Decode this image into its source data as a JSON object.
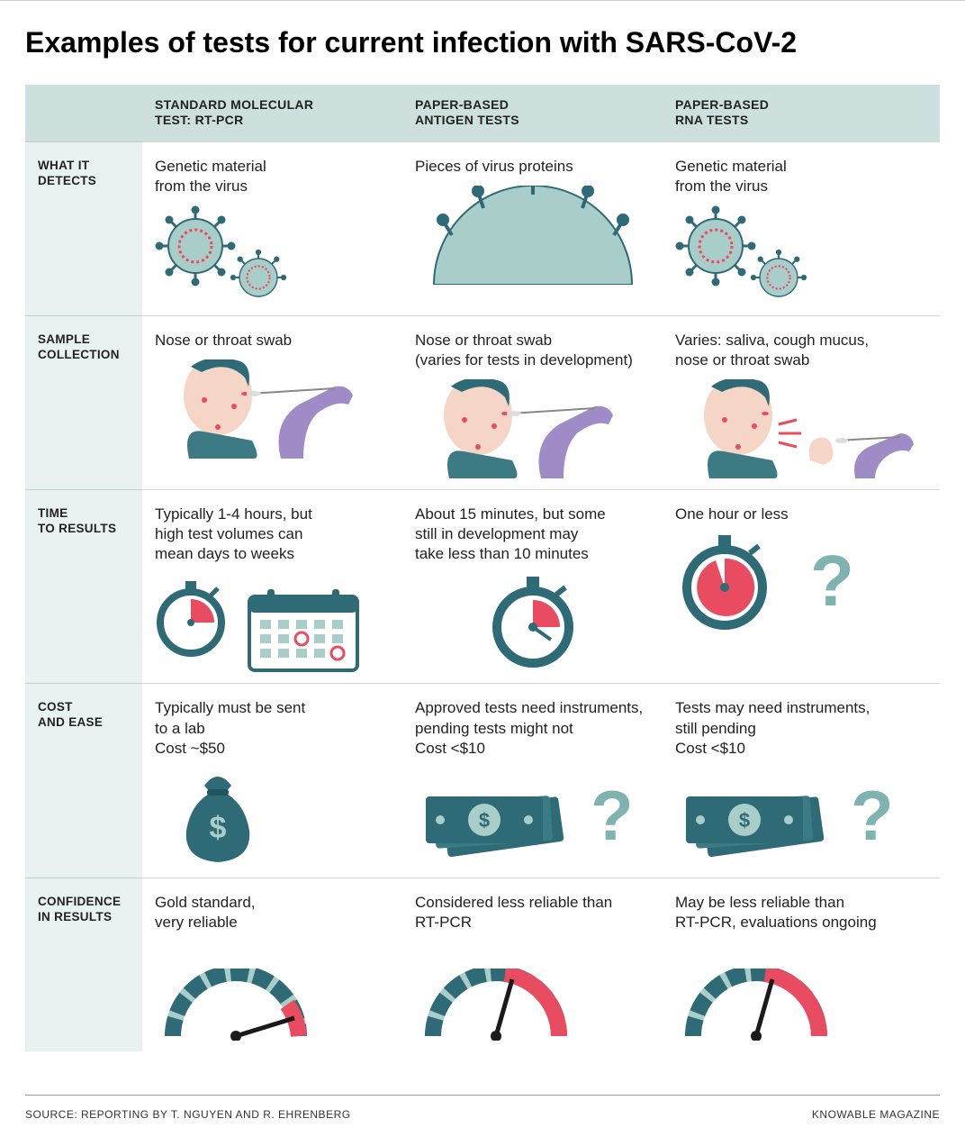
{
  "title": "Examples of tests for current infection with SARS-CoV-2",
  "colors": {
    "header_bg": "#cde0de",
    "rowlabel_bg": "#e9f2f1",
    "border_row": "#d6d6d6",
    "teal_dark": "#2f6a77",
    "teal_med": "#7fb3b0",
    "teal_light": "#a9cdc9",
    "accent_red": "#e94b60",
    "purple": "#9f8bc5",
    "skin": "#f5d6c6",
    "text": "#1a1a1a"
  },
  "columns": [
    {
      "label": "STANDARD MOLECULAR\nTEST: RT-PCR"
    },
    {
      "label": "PAPER-BASED\nANTIGEN TESTS"
    },
    {
      "label": "PAPER-BASED\nRNA TESTS"
    }
  ],
  "rows": [
    {
      "label": "WHAT IT\nDETECTS",
      "cells": [
        "Genetic material\nfrom the virus",
        "Pieces of virus proteins",
        "Genetic material\nfrom the virus"
      ],
      "icons": [
        "virus-pair",
        "virus-half",
        "virus-pair"
      ]
    },
    {
      "label": "SAMPLE\nCOLLECTION",
      "cells": [
        "Nose or throat swab",
        "Nose or throat swab\n(varies for tests in development)",
        "Varies: saliva, cough mucus,\nnose or throat swab"
      ],
      "icons": [
        "swab",
        "swab",
        "cough"
      ]
    },
    {
      "label": "TIME\nTO RESULTS",
      "cells": [
        "Typically 1-4 hours, but\nhigh test volumes can\nmean days to weeks",
        "About 15 minutes, but some\nstill in development may\ntake less than 10 minutes",
        "One hour or less"
      ],
      "icons": [
        "timer-cal",
        "timer-15",
        "timer-q"
      ]
    },
    {
      "label": "COST\nAND EASE",
      "cells": [
        "Typically must be sent\nto a lab\nCost ~$50",
        "Approved tests need instruments,\npending tests might not\nCost <$10",
        "Tests may need instruments,\nstill pending\nCost <$10"
      ],
      "icons": [
        "money-bag",
        "bills-q",
        "bills-q"
      ]
    },
    {
      "label": "CONFIDENCE\nIN RESULTS",
      "cells": [
        "Gold standard,\nvery reliable",
        "Considered less reliable than\nRT-PCR",
        "May be less reliable than\nRT-PCR, evaluations ongoing"
      ],
      "icons": [
        "gauge-high",
        "gauge-mid",
        "gauge-mid"
      ]
    }
  ],
  "footer": {
    "source": "SOURCE: REPORTING BY T. NGUYEN AND R. EHRENBERG",
    "brand": "KNOWABLE MAGAZINE"
  }
}
